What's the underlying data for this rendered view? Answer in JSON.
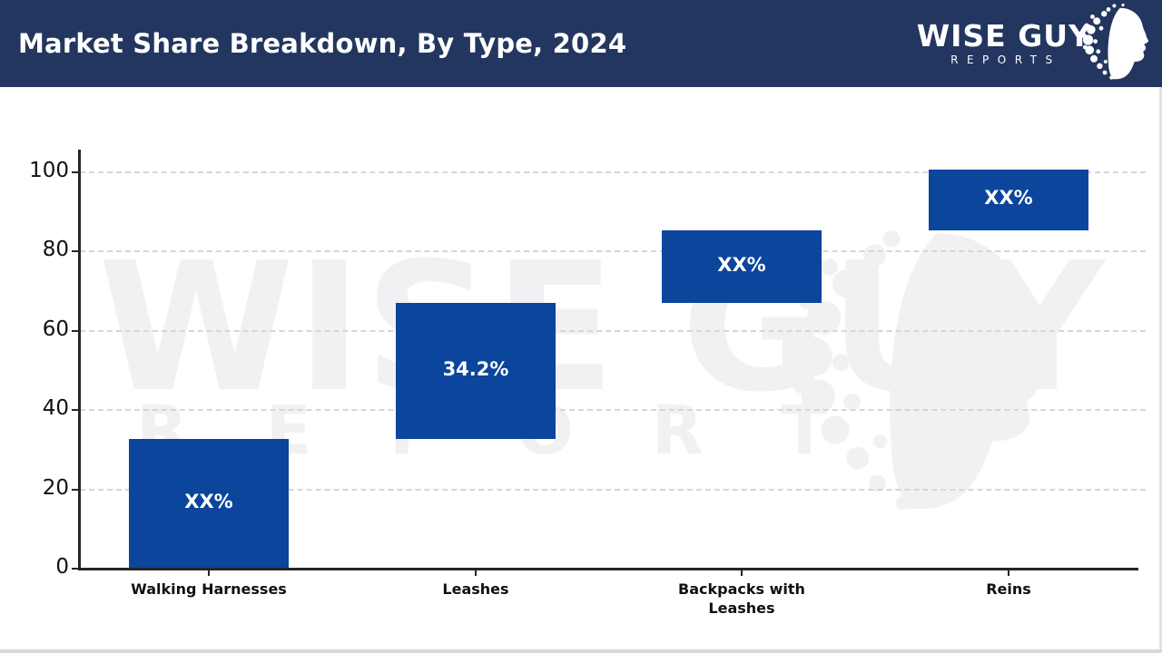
{
  "header": {
    "title": "Market Share Breakdown, By Type, 2024",
    "bg_color": "#23365F",
    "logo": {
      "line1": "WISE GUY",
      "line2": "REPORTS"
    }
  },
  "watermark": {
    "line1": "WISE GUY",
    "line2": "R E P O R T S"
  },
  "chart_data": {
    "type": "bar",
    "subtype": "waterfall-segments",
    "title": "Market Share Breakdown, By Type, 2024",
    "categories": [
      "Walking Harnesses",
      "Leashes",
      "Backpacks with\nLeashes",
      "Reins"
    ],
    "segments": [
      {
        "category": "Walking Harnesses",
        "start": 0,
        "end": 32.8,
        "value_label": "XX%"
      },
      {
        "category": "Leashes",
        "start": 32.8,
        "end": 67.0,
        "value_label": "34.2%"
      },
      {
        "category": "Backpacks with Leashes",
        "start": 67.0,
        "end": 85.3,
        "value_label": "XX%"
      },
      {
        "category": "Reins",
        "start": 85.3,
        "end": 100.6,
        "value_label": "XX%"
      }
    ],
    "yticks": [
      0,
      20,
      40,
      60,
      80,
      100
    ],
    "ylim": [
      0,
      105.6
    ],
    "grid": "horizontal-dashed",
    "legend": "none",
    "bar_color": "#0B459C",
    "value_label_color": "#FFFFFF"
  }
}
